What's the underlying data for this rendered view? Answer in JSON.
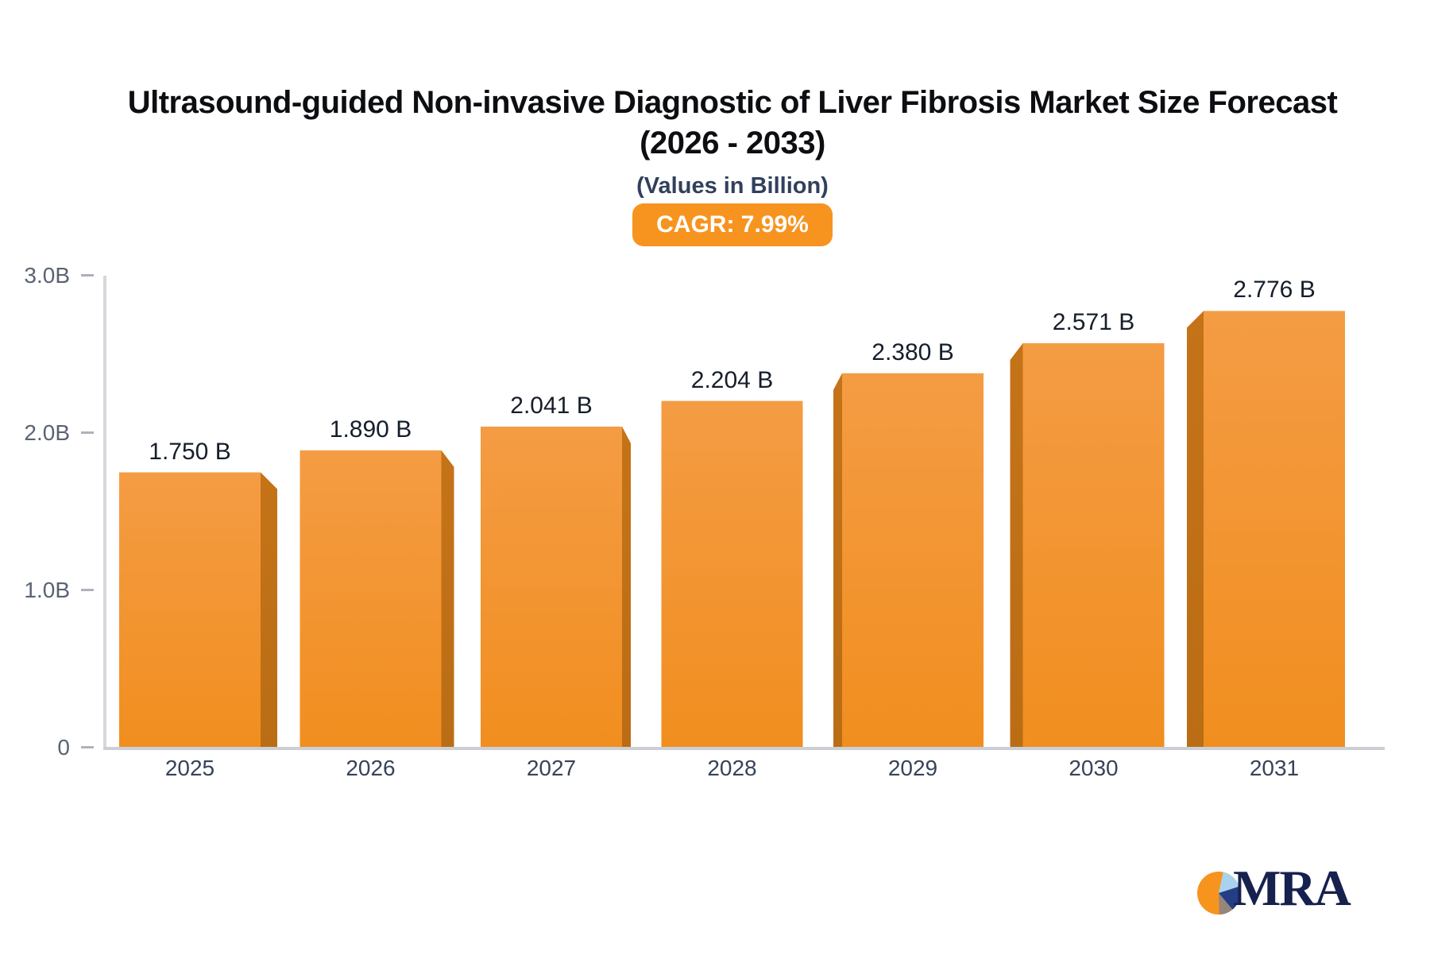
{
  "header": {
    "title_line1": "Ultrasound-guided Non-invasive Diagnostic of Liver Fibrosis Market Size Forecast",
    "title_line2": "(2026 - 2033)",
    "subtitle": "(Values in Billion)",
    "cagr_badge": "CAGR: 7.99%"
  },
  "chart_data": {
    "type": "bar",
    "title": "Ultrasound-guided Non-invasive Diagnostic of Liver Fibrosis Market Size Forecast (2026 - 2033)",
    "subtitle": "(Values in Billion)",
    "cagr": "7.99%",
    "categories": [
      "2025",
      "2026",
      "2027",
      "2028",
      "2029",
      "2030",
      "2031"
    ],
    "values": [
      1.75,
      1.89,
      2.041,
      2.204,
      2.38,
      2.571,
      2.776
    ],
    "value_labels": [
      "1.750 B",
      "1.890 B",
      "2.041 B",
      "2.204 B",
      "2.380 B",
      "2.571 B",
      "2.776 B"
    ],
    "y_ticks": [
      {
        "value": 3,
        "label": "3.0B"
      },
      {
        "value": 2,
        "label": "2.0B"
      },
      {
        "value": 1,
        "label": "1.0B"
      },
      {
        "value": 0,
        "label": "0"
      }
    ],
    "ylim": [
      0,
      3
    ],
    "xlabel": "",
    "ylabel": "",
    "grid": false,
    "legend": false,
    "bar_style": {
      "face_top": "#f49c44",
      "face_bottom": "#f18e1f",
      "side": "#ba6d15",
      "side_top": "#c57318"
    }
  },
  "branding": {
    "logo_text": "MRA"
  },
  "colors": {
    "accent_orange": "#f79420",
    "title": "#0d0e12",
    "subtitle": "#31405c",
    "axis_tick_label": "#5a6372",
    "x_label": "#37435a",
    "value_label": "#161e2b",
    "axis_line": "#d6d7db",
    "baseline": "#ccd0d6"
  }
}
